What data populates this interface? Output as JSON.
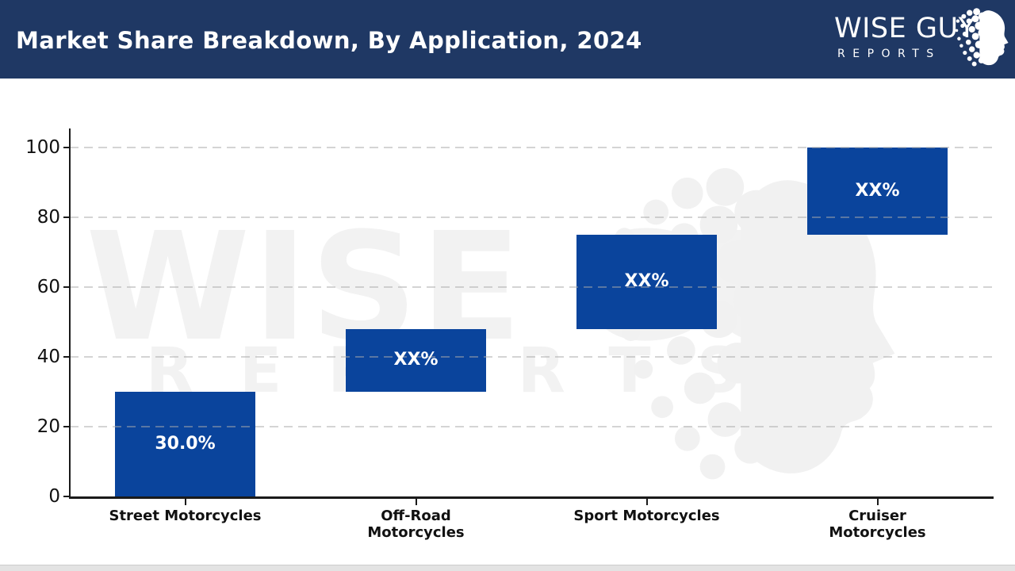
{
  "header": {
    "title": "Market Share Breakdown, By Application, 2024",
    "logo": {
      "name": "WISE GUY",
      "tagline": "REPORTS"
    }
  },
  "watermark": {
    "big_text": "WISE GU",
    "small_text": "REPORTS"
  },
  "chart_data": {
    "type": "bar",
    "subtype": "floating-waterfall",
    "title": "Market Share Breakdown, By Application, 2024",
    "categories": [
      "Street Motorcycles",
      "Off-Road Motorcycles",
      "Sport Motorcycles",
      "Cruiser Motorcycles"
    ],
    "tick_labels": [
      "Street Motorcycles",
      "Off-Road\nMotorcycles",
      "Sport Motorcycles",
      "Cruiser\nMotorcycles"
    ],
    "segments": [
      {
        "category": "Street Motorcycles",
        "start": 0,
        "end": 30,
        "label": "30.0%"
      },
      {
        "category": "Off-Road Motorcycles",
        "start": 30,
        "end": 48,
        "label": "XX%"
      },
      {
        "category": "Sport Motorcycles",
        "start": 48,
        "end": 75,
        "label": "XX%"
      },
      {
        "category": "Cruiser Motorcycles",
        "start": 75,
        "end": 100,
        "label": "XX%"
      }
    ],
    "yticks": [
      0,
      20,
      40,
      60,
      80,
      100
    ],
    "ylim": [
      0,
      105
    ],
    "grid": "horizontal-dashed",
    "legend": "none",
    "bar_color": "#0a449c",
    "value_label_color": "#ffffff"
  },
  "colors": {
    "header_bg": "#1f3864",
    "bar": "#0a449c",
    "axis": "#1a1a1a",
    "gridline": "#d9d9d9",
    "watermark": "#f2f2f2",
    "footer_strip": "#e3e3e3"
  }
}
